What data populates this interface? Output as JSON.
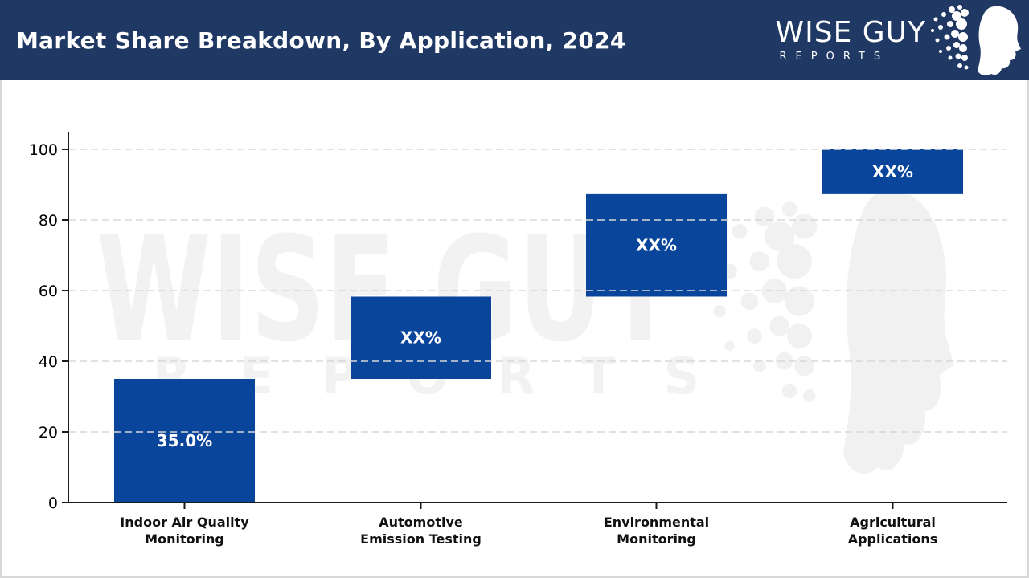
{
  "header": {
    "title": "Market Share Breakdown, By Application, 2024",
    "bg_color": "#1F3864",
    "logo": {
      "word": "WISE GUY",
      "sub": "REPORTS"
    }
  },
  "watermark": {
    "line1": "WISE GUY",
    "line2": "REPORTS"
  },
  "chart_data": {
    "type": "bar",
    "subtype": "waterfall",
    "title": "Market Share Breakdown, By Application, 2024",
    "categories": [
      [
        "Indoor Air Quality",
        "Monitoring"
      ],
      [
        "Automotive",
        "Emission Testing"
      ],
      [
        "Environmental",
        "Monitoring"
      ],
      [
        "Agricultural",
        "Applications"
      ]
    ],
    "series": [
      {
        "name": "Indoor Air Quality Monitoring",
        "start": 0,
        "end": 35.0,
        "value": 35.0,
        "label": "35.0%"
      },
      {
        "name": "Automotive Emission Testing",
        "start": 35.0,
        "end": 58.3,
        "value": 23.3,
        "label": "XX%"
      },
      {
        "name": "Environmental Monitoring",
        "start": 58.3,
        "end": 87.3,
        "value": 29.0,
        "label": "XX%"
      },
      {
        "name": "Agricultural Applications",
        "start": 87.3,
        "end": 100.0,
        "value": 12.7,
        "label": "XX%"
      }
    ],
    "xlabel": "",
    "ylabel": "",
    "ylim": [
      0,
      100
    ],
    "yticks": [
      0,
      20,
      40,
      60,
      80,
      100
    ],
    "grid": "horizontal-dashed",
    "legend": "none",
    "bar_color": "#09459B",
    "bar_label_color": "#ffffff",
    "axis_color": "#1a1a1a",
    "grid_color": "#d8d8d8",
    "tick_label_color": "#000000",
    "category_label_color": "#111111"
  }
}
